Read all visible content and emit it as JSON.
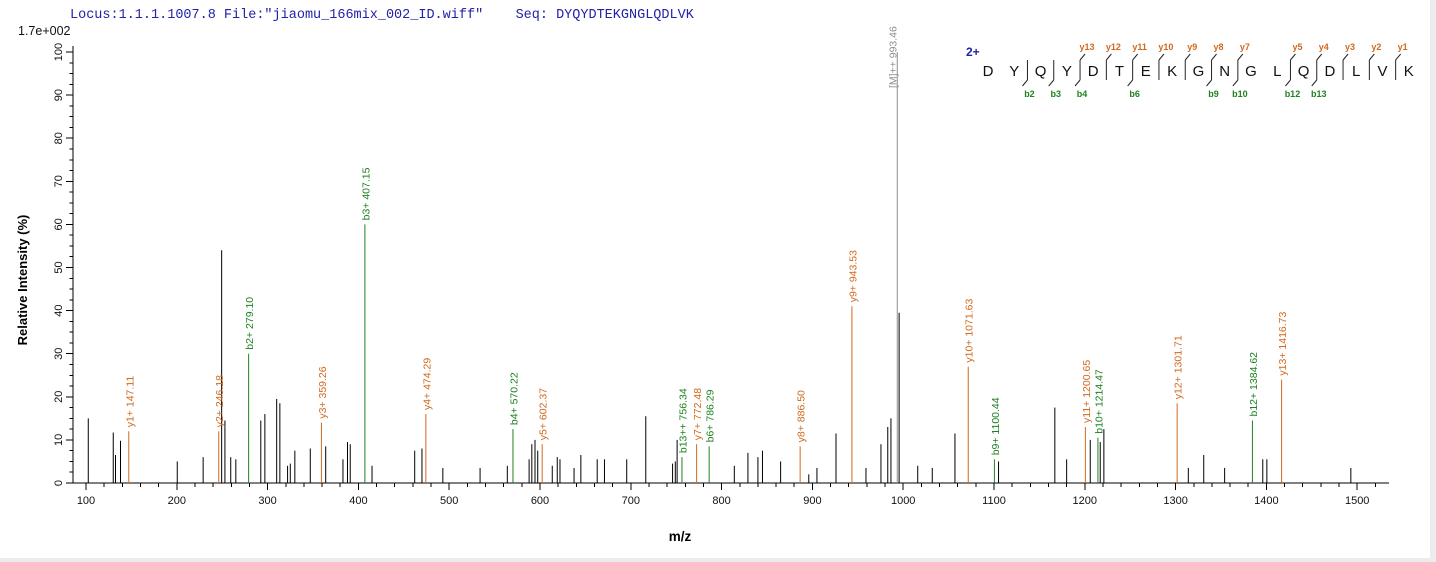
{
  "header": {
    "line": "Locus:1.1.1.1007.8 File:\"jiaomu_166mix_002_ID.wiff\"    Seq: DYQYDTEKGNGLQDLVK",
    "color": "#2222AA"
  },
  "scale_note": "1.7e+002",
  "colors": {
    "y_ion": "#D2691E",
    "b_ion": "#1E8220",
    "precursor": "#8F8F8F",
    "peak": "#000000",
    "axis": "#000000",
    "header_text": "#2222AA",
    "cut_mark": "#222222"
  },
  "sequence_display": {
    "charge_label": "2+",
    "residues": [
      "D",
      "Y",
      "Q",
      "Y",
      "D",
      "T",
      "E",
      "K",
      "G",
      "N",
      "G",
      "L",
      "Q",
      "D",
      "L",
      "V",
      "K"
    ],
    "y_ions": [
      {
        "after": 4,
        "label": "y13"
      },
      {
        "after": 5,
        "label": "y12"
      },
      {
        "after": 6,
        "label": "y11"
      },
      {
        "after": 7,
        "label": "y10"
      },
      {
        "after": 8,
        "label": "y9"
      },
      {
        "after": 9,
        "label": "y8"
      },
      {
        "after": 10,
        "label": "y7"
      },
      {
        "after": 12,
        "label": "y5"
      },
      {
        "after": 13,
        "label": "y4"
      },
      {
        "after": 14,
        "label": "y3"
      },
      {
        "after": 15,
        "label": "y2"
      },
      {
        "after": 16,
        "label": "y1"
      }
    ],
    "b_ions": [
      {
        "after": 2,
        "label": "b2"
      },
      {
        "after": 3,
        "label": "b3"
      },
      {
        "after": 4,
        "label": "b4"
      },
      {
        "after": 6,
        "label": "b6"
      },
      {
        "after": 9,
        "label": "b9"
      },
      {
        "after": 10,
        "label": "b10"
      },
      {
        "after": 12,
        "label": "b12"
      },
      {
        "after": 13,
        "label": "b13"
      }
    ]
  },
  "chart_data": {
    "type": "bar",
    "subtype": "ms2-spectrum",
    "title": "",
    "xlabel": "m/z",
    "ylabel": "Relative  Intensity (%)",
    "scale_note": "1.7e+002",
    "x_axis": {
      "min": 100,
      "max": 1500,
      "major_step": 100,
      "minor_step": 20,
      "tick_labels": [
        "100",
        "200",
        "300",
        "400",
        "500",
        "600",
        "700",
        "800",
        "900",
        "1000",
        "1100",
        "1200",
        "1300",
        "1400",
        "1500"
      ]
    },
    "y_axis": {
      "min": 0,
      "max": 100,
      "major_step": 10,
      "minor_step": 2.5,
      "tick_labels": [
        "0",
        "10",
        "20",
        "30",
        "40",
        "50",
        "60",
        "70",
        "80",
        "90",
        "100"
      ]
    },
    "grid": false,
    "labeled_peaks": [
      {
        "label": "y1+ 147.11",
        "mz": 147.11,
        "intensity": 12,
        "ion": "y"
      },
      {
        "label": "y2+ 246.18",
        "mz": 246.18,
        "intensity": 12,
        "ion": "y"
      },
      {
        "label": "b2+ 279.10",
        "mz": 279.1,
        "intensity": 30,
        "ion": "b"
      },
      {
        "label": "y3+ 359.26",
        "mz": 359.26,
        "intensity": 14,
        "ion": "y"
      },
      {
        "label": "b3+ 407.15",
        "mz": 407.15,
        "intensity": 60,
        "ion": "b"
      },
      {
        "label": "y4+ 474.29",
        "mz": 474.29,
        "intensity": 16,
        "ion": "y"
      },
      {
        "label": "b4+ 570.22",
        "mz": 570.22,
        "intensity": 12.5,
        "ion": "b"
      },
      {
        "label": "y5+ 602.37",
        "mz": 602.37,
        "intensity": 9,
        "ion": "y"
      },
      {
        "label": "b13++ 756.34",
        "mz": 756.34,
        "intensity": 6,
        "ion": "b"
      },
      {
        "label": "y7+ 772.48",
        "mz": 772.48,
        "intensity": 9,
        "ion": "y"
      },
      {
        "label": "b6+ 786.29",
        "mz": 786.29,
        "intensity": 8.5,
        "ion": "b"
      },
      {
        "label": "y8+ 886.50",
        "mz": 886.5,
        "intensity": 8.5,
        "ion": "y"
      },
      {
        "label": "y9+ 943.53",
        "mz": 943.53,
        "intensity": 41,
        "ion": "y"
      },
      {
        "label": "[M]++ 993.46",
        "mz": 993.46,
        "intensity": 100,
        "ion": "precursor"
      },
      {
        "label": "y10+ 1071.63",
        "mz": 1071.63,
        "intensity": 27,
        "ion": "y"
      },
      {
        "label": "b9+ 1100.44",
        "mz": 1100.44,
        "intensity": 5.5,
        "ion": "b"
      },
      {
        "label": "y11+ 1200.65",
        "mz": 1200.65,
        "intensity": 13,
        "ion": "y"
      },
      {
        "label": "b10+ 1214.47",
        "mz": 1214.47,
        "intensity": 10.5,
        "ion": "b"
      },
      {
        "label": "y12+ 1301.71",
        "mz": 1301.71,
        "intensity": 18.5,
        "ion": "y"
      },
      {
        "label": "b12+ 1384.62",
        "mz": 1384.62,
        "intensity": 14.5,
        "ion": "b"
      },
      {
        "label": "y13+ 1416.73",
        "mz": 1416.73,
        "intensity": 24,
        "ion": "y"
      }
    ],
    "unlabeled_peaks": [
      [
        102.5,
        15
      ],
      [
        130,
        11.7
      ],
      [
        132.5,
        6.5
      ],
      [
        138,
        9.8
      ],
      [
        200.5,
        5
      ],
      [
        229,
        6
      ],
      [
        249.4,
        54
      ],
      [
        253,
        14.5
      ],
      [
        259.4,
        6
      ],
      [
        265,
        5.5
      ],
      [
        292.5,
        14.5
      ],
      [
        297,
        16
      ],
      [
        310,
        19.5
      ],
      [
        313.5,
        18.5
      ],
      [
        322,
        4
      ],
      [
        325,
        4.5
      ],
      [
        330,
        7.5
      ],
      [
        347,
        8
      ],
      [
        364,
        8.5
      ],
      [
        383,
        5.5
      ],
      [
        388,
        9.5
      ],
      [
        391,
        9
      ],
      [
        415,
        4
      ],
      [
        462,
        7.5
      ],
      [
        470,
        8
      ],
      [
        493,
        3.5
      ],
      [
        534,
        3.5
      ],
      [
        564,
        4
      ],
      [
        588,
        5.5
      ],
      [
        591,
        9
      ],
      [
        594.5,
        10
      ],
      [
        597.5,
        7.5
      ],
      [
        613.5,
        4
      ],
      [
        619,
        6
      ],
      [
        622,
        5.5
      ],
      [
        637.5,
        3.5
      ],
      [
        645,
        6.5
      ],
      [
        663,
        5.5
      ],
      [
        671,
        5.5
      ],
      [
        695.5,
        5.5
      ],
      [
        716.5,
        15.5
      ],
      [
        746,
        4.5
      ],
      [
        749,
        5
      ],
      [
        751,
        10
      ],
      [
        814,
        4
      ],
      [
        829,
        7
      ],
      [
        840,
        6
      ],
      [
        845,
        7.5
      ],
      [
        865,
        5
      ],
      [
        896,
        2
      ],
      [
        905,
        3.5
      ],
      [
        926,
        11.5
      ],
      [
        959,
        3.5
      ],
      [
        975.5,
        9
      ],
      [
        983,
        13
      ],
      [
        986.5,
        15
      ],
      [
        995.5,
        39.5
      ],
      [
        1016,
        4
      ],
      [
        1032,
        3.5
      ],
      [
        1057,
        11.5
      ],
      [
        1105,
        5
      ],
      [
        1167,
        17.5
      ],
      [
        1180,
        5.5
      ],
      [
        1206,
        10
      ],
      [
        1217,
        9.5
      ],
      [
        1221,
        12.5
      ],
      [
        1314,
        3.5
      ],
      [
        1331,
        6.5
      ],
      [
        1354,
        3.5
      ],
      [
        1396,
        5.5
      ],
      [
        1400.5,
        5.5
      ],
      [
        1493,
        3.5
      ]
    ]
  }
}
